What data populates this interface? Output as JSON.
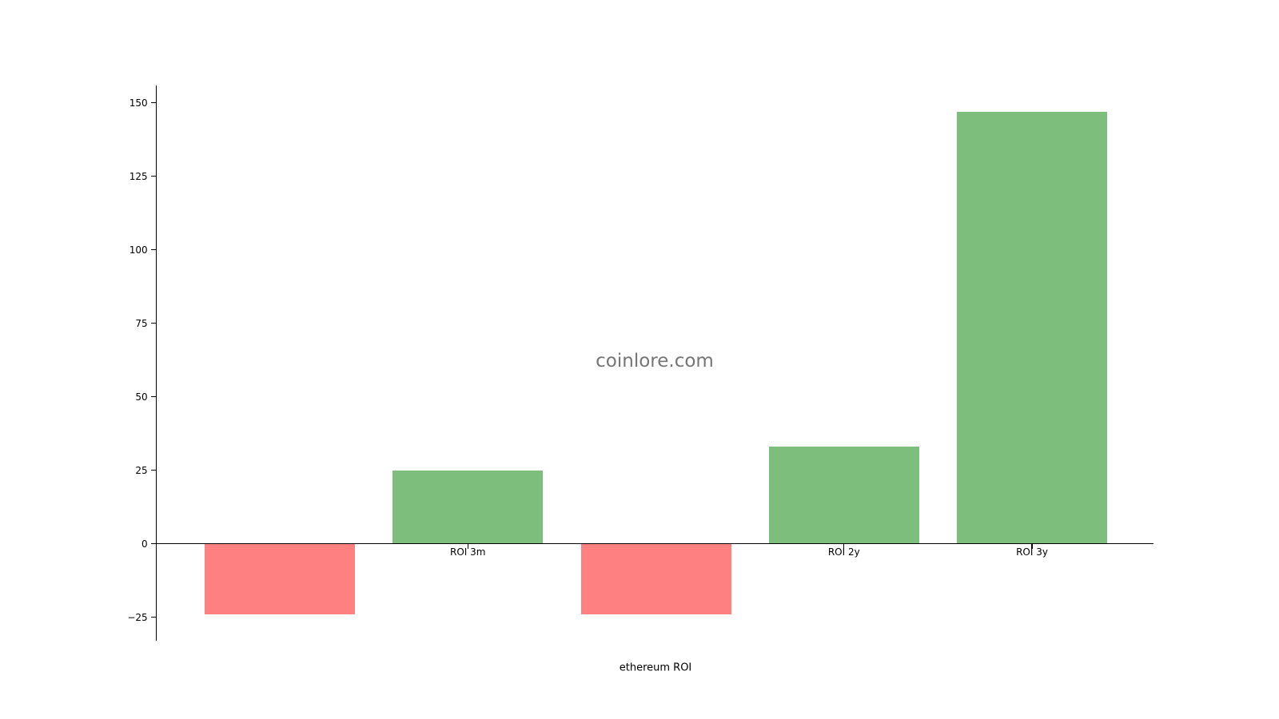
{
  "chart_data": {
    "type": "bar",
    "title": "",
    "xlabel": "ethereum ROI",
    "ylabel": "",
    "watermark": "coinlore.com",
    "categories": [
      "",
      "ROI 3m",
      "",
      "ROI 2y",
      "ROI 3y"
    ],
    "values": [
      -24,
      25,
      -24,
      33,
      147
    ],
    "bar_colors": [
      "#ff8080",
      "#7dbe7d",
      "#ff8080",
      "#7dbe7d",
      "#7dbe7d"
    ],
    "yticks": [
      150,
      125,
      100,
      75,
      50,
      25,
      0,
      -25
    ],
    "ytick_labels": [
      "150",
      "125",
      "100",
      "75",
      "50",
      "25",
      "0",
      "−25"
    ],
    "ylim": [
      -33,
      156
    ],
    "grid": false,
    "legend": null,
    "colors": {
      "positive": "#7dbe7d",
      "negative": "#ff8080",
      "axis": "#000000",
      "tick_text": "#000000",
      "watermark": "#757575",
      "background": "#ffffff"
    }
  }
}
